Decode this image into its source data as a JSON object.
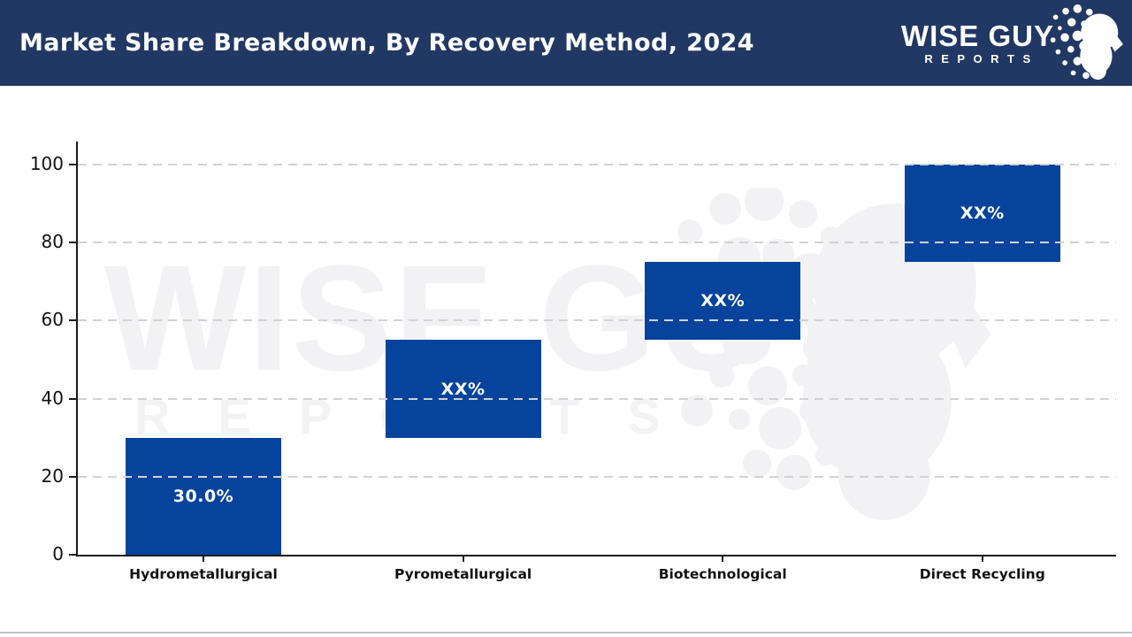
{
  "header": {
    "title": "Market Share Breakdown, By Recovery Method, 2024",
    "logo": {
      "line1": "WISE GUY",
      "line2": "REPORTS"
    }
  },
  "watermark": {
    "line1": "WISE GUY",
    "line2": "REPORTS"
  },
  "colors": {
    "header_bg": "#213864",
    "bar": "#05439C",
    "bar_label": "#ffffff",
    "grid": "#d2d2d2",
    "axis": "#1a1a1a",
    "watermark": "#f2f2f5"
  },
  "chart_data": {
    "type": "bar",
    "variant": "waterfall",
    "title": "Market Share Breakdown, By Recovery Method, 2024",
    "categories": [
      "Hydrometallurgical",
      "Pyrometallurgical",
      "Biotechnological",
      "Direct Recycling"
    ],
    "bars": [
      {
        "category": "Hydrometallurgical",
        "start": 0,
        "end": 30,
        "value": 30.0,
        "label": "30.0%"
      },
      {
        "category": "Pyrometallurgical",
        "start": 30,
        "end": 55,
        "value": 25,
        "label": "XX%"
      },
      {
        "category": "Biotechnological",
        "start": 55,
        "end": 75,
        "value": 20,
        "label": "XX%"
      },
      {
        "category": "Direct Recycling",
        "start": 75,
        "end": 100,
        "value": 25,
        "label": "XX%"
      }
    ],
    "xlabel": "",
    "ylabel": "",
    "ylim": [
      0,
      105
    ],
    "yticks": [
      0,
      20,
      40,
      60,
      80,
      100
    ],
    "grid": "horizontal-dashed",
    "legend": "none"
  }
}
